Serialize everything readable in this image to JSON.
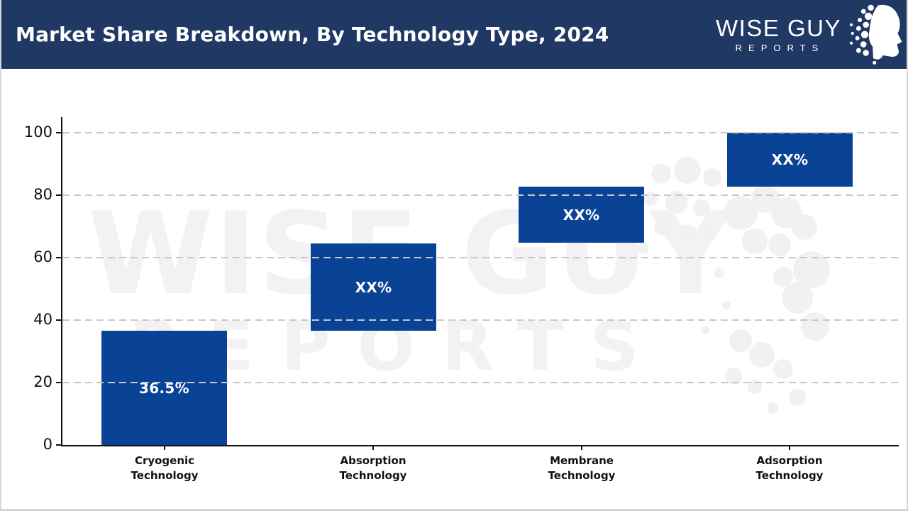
{
  "header": {
    "title": "Market Share Breakdown, By Technology Type, 2024",
    "logo": {
      "name": "WISE GUY",
      "subtitle": "REPORTS"
    }
  },
  "watermark": {
    "line1": "WISE GUY",
    "line2": "REPORTS"
  },
  "colors": {
    "header_bg": "#203864",
    "bar": "#0a4396",
    "grid": "#c8c8c8",
    "axis": "#111111",
    "bar_label": "#ffffff",
    "watermark": "#f2f2f4"
  },
  "chart_data": {
    "type": "bar",
    "subtype": "floating-waterfall",
    "title": "Market Share Breakdown, By Technology Type, 2024",
    "categories": [
      "Cryogenic\nTechnology",
      "Absorption\nTechnology",
      "Membrane\nTechnology",
      "Adsorption\nTechnology"
    ],
    "series": [
      {
        "name": "Market Share (%)",
        "segments": [
          {
            "category": "Cryogenic Technology",
            "from": 0,
            "to": 36.5,
            "label": "36.5%"
          },
          {
            "category": "Absorption Technology",
            "from": 36.5,
            "to": 64.6,
            "label": "XX%"
          },
          {
            "category": "Membrane Technology",
            "from": 64.8,
            "to": 82.8,
            "label": "XX%"
          },
          {
            "category": "Adsorption Technology",
            "from": 82.8,
            "to": 100,
            "label": "XX%"
          }
        ]
      }
    ],
    "yticks": [
      0,
      20,
      40,
      60,
      80,
      100
    ],
    "ylim": [
      0,
      105
    ],
    "xlabel": "",
    "ylabel": "",
    "grid": "horizontal-dashed",
    "legend": "none"
  }
}
